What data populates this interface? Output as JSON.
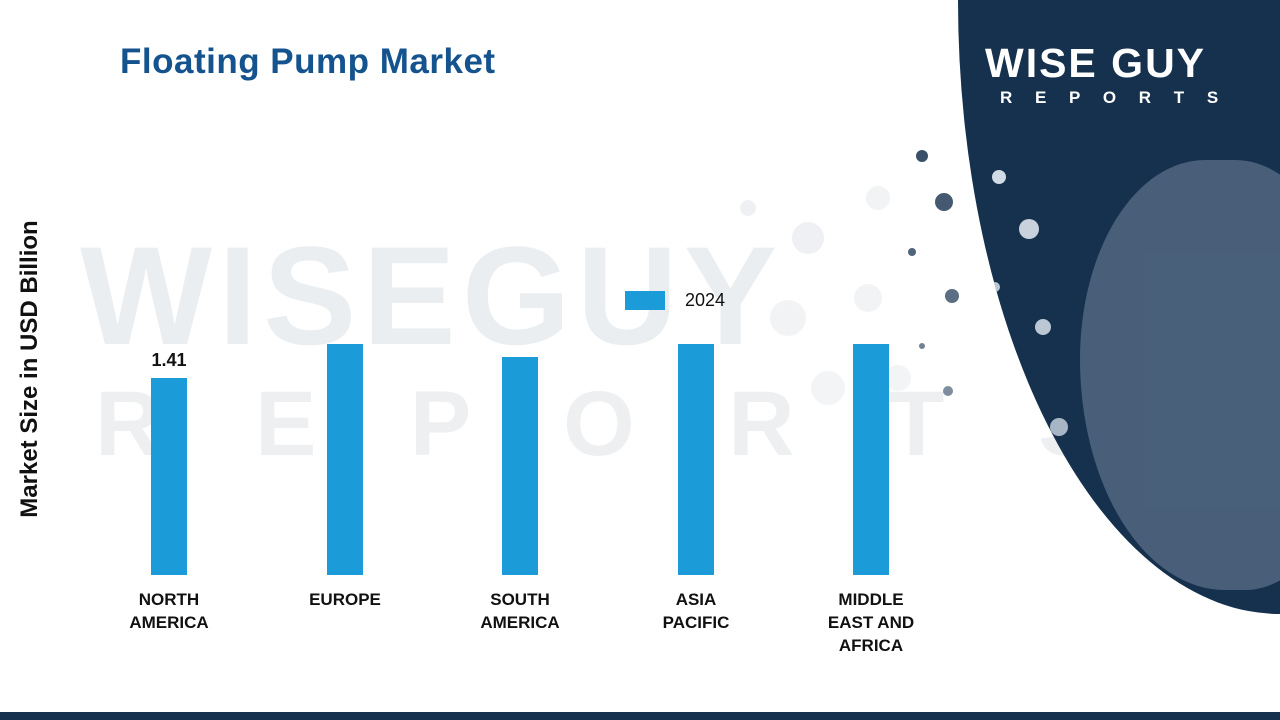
{
  "page": {
    "title": "Floating Pump Market"
  },
  "logo": {
    "line1": "WISE GUY",
    "line2": "R E P O R T S"
  },
  "watermark": {
    "line1": "WISEGUY",
    "line2": "R E P O R T S"
  },
  "legend": {
    "label": "2024"
  },
  "colors": {
    "bar": "#1b9cd9",
    "title": "#15538f",
    "navy": "#16314e"
  },
  "chart_data": {
    "type": "bar",
    "title": "Floating Pump Market",
    "xlabel": "",
    "ylabel": "Market Size in USD Billion",
    "ylim": [
      0,
      1.8
    ],
    "grid": false,
    "legend_position": "top-center",
    "categories": [
      "NORTH AMERICA",
      "EUROPE",
      "SOUTH AMERICA",
      "ASIA PACIFIC",
      "MIDDLE EAST AND AFRICA"
    ],
    "series": [
      {
        "name": "2024",
        "values": [
          1.41,
          1.65,
          1.56,
          1.65,
          1.65
        ]
      }
    ],
    "data_labels": [
      "1.41",
      "",
      "",
      "",
      ""
    ]
  }
}
